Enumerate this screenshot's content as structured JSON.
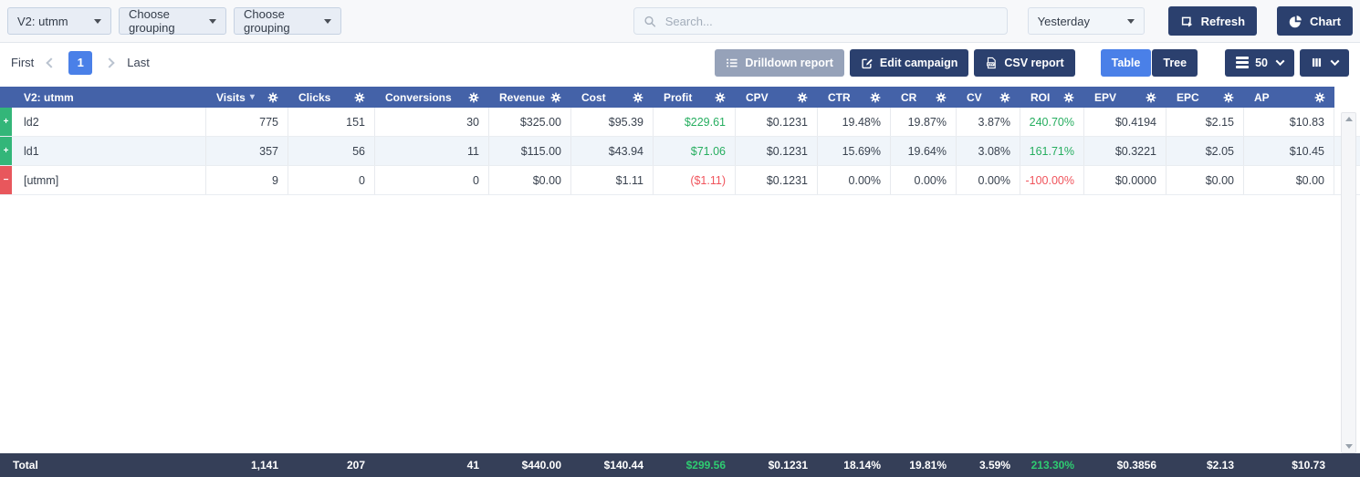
{
  "toolbar": {
    "campaign_dropdown": {
      "label": "V2: utmm"
    },
    "grouping_dropdowns": [
      "Choose grouping",
      "Choose grouping"
    ],
    "search": {
      "placeholder": "Search..."
    },
    "date_dropdown": {
      "label": "Yesterday"
    },
    "refresh_button": "Refresh",
    "chart_button": "Chart"
  },
  "pagination": {
    "first": "First",
    "current_page": "1",
    "last": "Last"
  },
  "actions": {
    "drilldown_report": "Drilldown report",
    "edit_campaign": "Edit campaign",
    "csv_report": "CSV report",
    "view_table": "Table",
    "view_tree": "Tree",
    "rows_per_page": "50"
  },
  "table": {
    "columns": [
      {
        "key": "name",
        "label": "V2: utmm",
        "gear": false
      },
      {
        "key": "visits",
        "label": "Visits",
        "gear": true,
        "sort": "desc"
      },
      {
        "key": "clicks",
        "label": "Clicks",
        "gear": true
      },
      {
        "key": "conversions",
        "label": "Conversions",
        "gear": true
      },
      {
        "key": "revenue",
        "label": "Revenue",
        "gear": true
      },
      {
        "key": "cost",
        "label": "Cost",
        "gear": true
      },
      {
        "key": "profit",
        "label": "Profit",
        "gear": true
      },
      {
        "key": "cpv",
        "label": "CPV",
        "gear": true
      },
      {
        "key": "ctr",
        "label": "CTR",
        "gear": true
      },
      {
        "key": "cr",
        "label": "CR",
        "gear": true
      },
      {
        "key": "cv",
        "label": "CV",
        "gear": true
      },
      {
        "key": "roi",
        "label": "ROI",
        "gear": true
      },
      {
        "key": "epv",
        "label": "EPV",
        "gear": true
      },
      {
        "key": "epc",
        "label": "EPC",
        "gear": true
      },
      {
        "key": "ap",
        "label": "AP",
        "gear": true
      }
    ],
    "rows": [
      {
        "name": "ld2",
        "indicator": "green",
        "indicator_glyph": "+",
        "values": [
          "775",
          "151",
          "30",
          "$325.00",
          "$95.39",
          "$229.61",
          "$0.1231",
          "19.48%",
          "19.87%",
          "3.87%",
          "240.70%",
          "$0.4194",
          "$2.15",
          "$10.83"
        ],
        "value_colors": {
          "5": "pos",
          "10": "pos"
        }
      },
      {
        "name": "ld1",
        "indicator": "green",
        "indicator_glyph": "+",
        "values": [
          "357",
          "56",
          "11",
          "$115.00",
          "$43.94",
          "$71.06",
          "$0.1231",
          "15.69%",
          "19.64%",
          "3.08%",
          "161.71%",
          "$0.3221",
          "$2.05",
          "$10.45"
        ],
        "value_colors": {
          "5": "pos",
          "10": "pos"
        }
      },
      {
        "name": "[utmm]",
        "indicator": "red",
        "indicator_glyph": "−",
        "values": [
          "9",
          "0",
          "0",
          "$0.00",
          "$1.11",
          "($1.11)",
          "$0.1231",
          "0.00%",
          "0.00%",
          "0.00%",
          "-100.00%",
          "$0.0000",
          "$0.00",
          "$0.00"
        ],
        "value_colors": {
          "5": "neg",
          "10": "neg"
        }
      }
    ],
    "total": {
      "label": "Total",
      "values": [
        "1,141",
        "207",
        "41",
        "$440.00",
        "$140.44",
        "$299.56",
        "$0.1231",
        "18.14%",
        "19.81%",
        "3.59%",
        "213.30%",
        "$0.3856",
        "$2.13",
        "$10.73"
      ],
      "value_colors": {
        "5": "pos",
        "10": "pos"
      }
    }
  },
  "icons": {
    "search": "magnifier",
    "refresh": "window-with-arrow",
    "chart": "pie-chart",
    "drilldown": "bulleted-list",
    "edit_campaign": "pencil-square",
    "csv": "csv-file",
    "rows_per_page": "hamburger",
    "columns": "three-vertical-bars",
    "column_settings": "gear",
    "sort": "caret-down"
  },
  "colors": {
    "header_bg": "#4462a8",
    "total_bg": "#353f58",
    "accent_blue": "#4a80e8",
    "navy_button": "#2b406e",
    "muted_button": "#96a2b9",
    "positive_green": "#27ae60",
    "total_green": "#2ecc71",
    "negative_red": "#f0545c",
    "indicator_green": "#33b679",
    "indicator_red": "#e8575c",
    "alt_row_bg": "#f0f5fa"
  }
}
